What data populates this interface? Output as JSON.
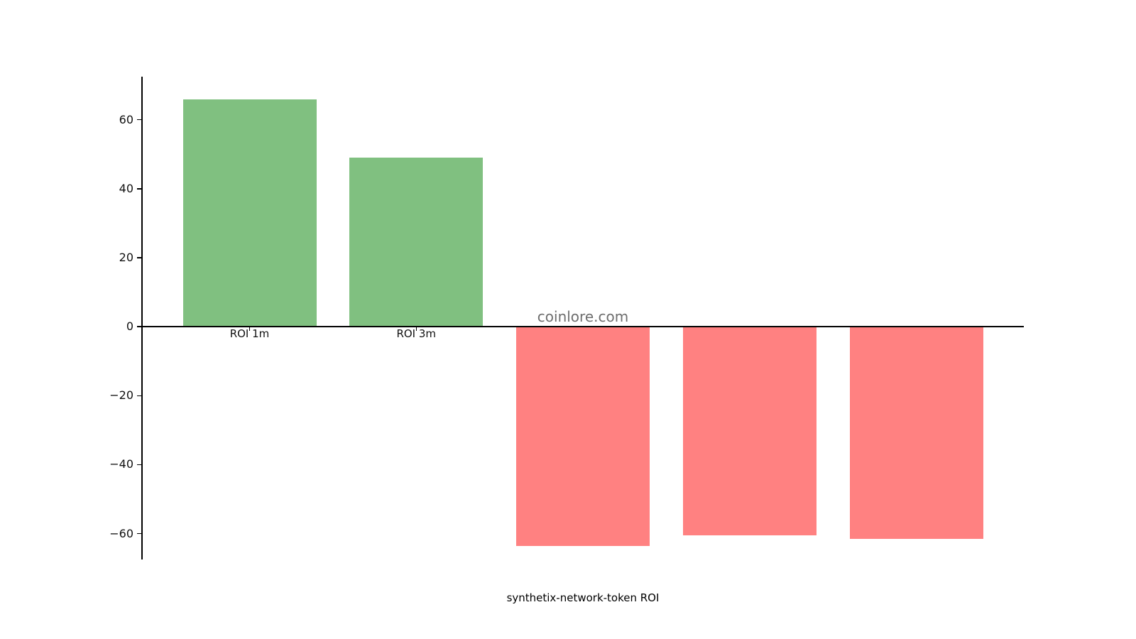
{
  "chart_data": {
    "type": "bar",
    "title": "synthetix-network-token ROI",
    "watermark": "coinlore.com",
    "categories": [
      "ROI 1m",
      "ROI 3m",
      null,
      null,
      null
    ],
    "values": [
      66,
      49,
      -63.5,
      -60.5,
      -61.5
    ],
    "bar_colors": [
      "#80c080",
      "#80c080",
      "#ff8181",
      "#ff8181",
      "#ff8181"
    ],
    "positive_color": "#80c080",
    "negative_color": "#ff8181",
    "ylim": [
      -67.5,
      72.5
    ],
    "yticks": [
      60,
      40,
      20,
      0,
      -20,
      -40,
      -60
    ],
    "ytick_labels": [
      "60",
      "40",
      "20",
      "0",
      "−20",
      "−40",
      "−60"
    ],
    "xlabel": "",
    "ylabel": "",
    "grid": false,
    "legend": false,
    "axis_color": "#000000"
  }
}
